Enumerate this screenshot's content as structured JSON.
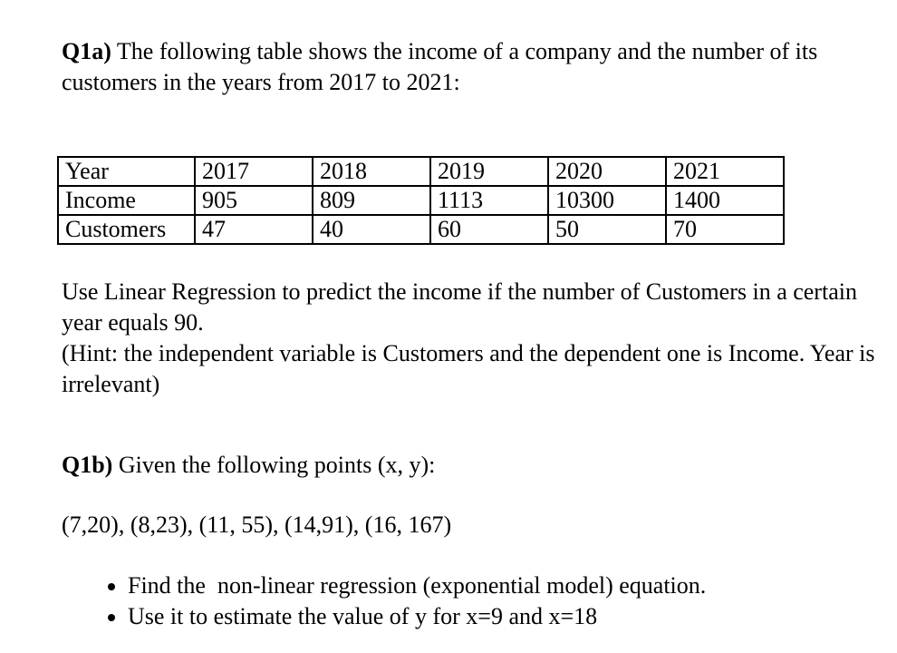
{
  "page": {
    "background": "#ffffff",
    "text_color": "#000000"
  },
  "q1a": {
    "label": "Q1a)",
    "intro": "The following table shows the income of a company and the number of its customers in the years from 2017 to 2021:",
    "table": {
      "rows": [
        [
          "Year",
          "2017",
          "2018",
          "2019",
          "2020",
          "2021"
        ],
        [
          "Income",
          "905",
          "809",
          "1113",
          "10300",
          "1400"
        ],
        [
          "Customers",
          "47",
          "40",
          "60",
          "50",
          "70"
        ]
      ]
    },
    "task": "Use Linear Regression to predict the income if the number of Customers in a certain year equals 90.",
    "hint": "(Hint: the independent variable is Customers and the dependent one is Income. Year is irrelevant)"
  },
  "q1b": {
    "label": "Q1b)",
    "intro": "Given the following points (x, y):",
    "points": "(7,20), (8,23), (11, 55), (14,91), (16, 167)",
    "bullets": [
      "Find the  non-linear regression (exponential model) equation.",
      "Use it to estimate the value of y for x=9 and x=18"
    ]
  }
}
